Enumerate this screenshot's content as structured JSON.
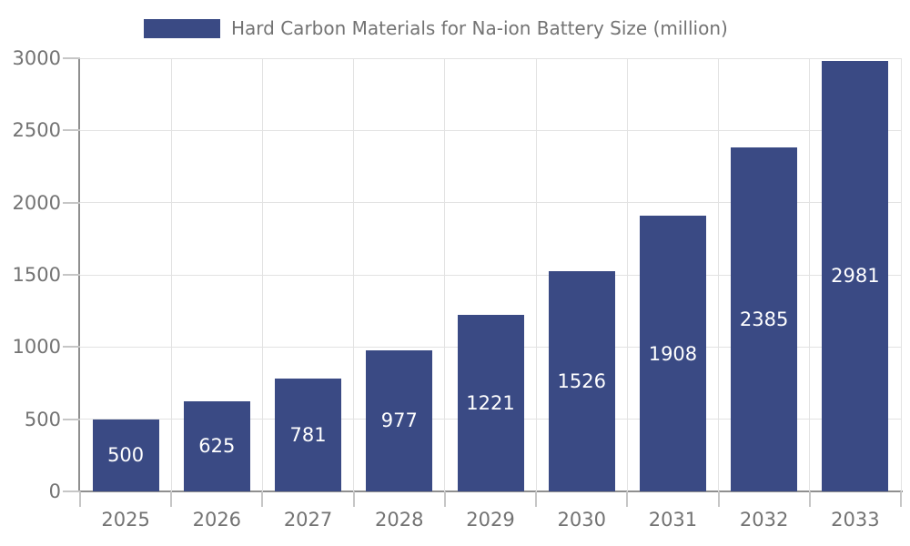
{
  "chart_data": {
    "type": "bar",
    "title": "Hard Carbon Materials for Na-ion Battery Size (million)",
    "categories": [
      "2025",
      "2026",
      "2027",
      "2028",
      "2029",
      "2030",
      "2031",
      "2032",
      "2033"
    ],
    "series": [
      {
        "name": "Hard Carbon Materials for Na-ion Battery Size (million)",
        "values": [
          500,
          625,
          781,
          977,
          1221,
          1526,
          1908,
          2385,
          2981
        ]
      }
    ],
    "value_labels": [
      "500",
      "625",
      "781",
      "977",
      "1221",
      "1526",
      "1908",
      "2385",
      "2981"
    ],
    "xlabel": "",
    "ylabel": "",
    "ylim": [
      0,
      3000
    ],
    "yticks": [
      0,
      500,
      1000,
      1500,
      2000,
      2500,
      3000
    ],
    "ytick_labels": [
      "0",
      "500",
      "1000",
      "1500",
      "2000",
      "2500",
      "3000"
    ],
    "grid": "on",
    "legend_position": "top",
    "colors": {
      "bar": "#3A4A84",
      "value_label": "#FFFFFF",
      "axis_label": "#737373",
      "gridline": "#E2E2E2",
      "axis_line": "#8F8F8F",
      "tick": "#C6C6C6",
      "background": "#FFFFFF"
    }
  },
  "legend": {
    "label": "Hard Carbon Materials for Na-ion Battery Size (million)",
    "swatch_color": "#3A4A84"
  }
}
